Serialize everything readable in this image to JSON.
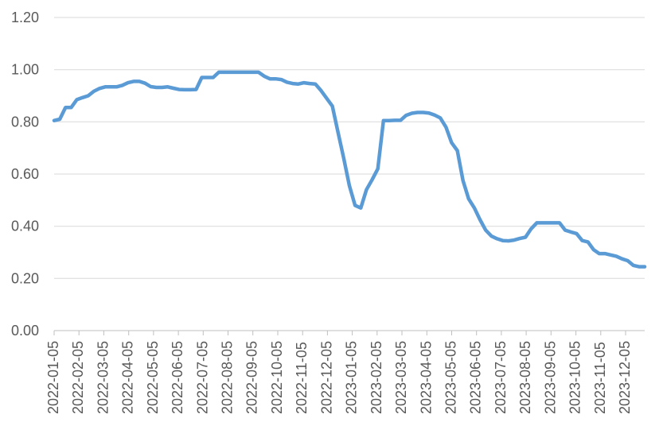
{
  "chart_data": {
    "type": "line",
    "title": "",
    "xlabel": "",
    "ylabel": "",
    "legend": "none",
    "grid": true,
    "ylim": [
      0.0,
      1.2
    ],
    "y_ticks": [
      "0.00",
      "0.20",
      "0.40",
      "0.60",
      "0.80",
      "1.00",
      "1.20"
    ],
    "x_tick_labels": [
      "2022-01-05",
      "2022-02-05",
      "2022-03-05",
      "2022-04-05",
      "2022-05-05",
      "2022-06-05",
      "2022-07-05",
      "2022-08-05",
      "2022-09-05",
      "2022-10-05",
      "2022-11-05",
      "2022-12-05",
      "2023-01-05",
      "2023-02-05",
      "2023-03-05",
      "2023-04-05",
      "2023-05-05",
      "2023-06-05",
      "2023-07-05",
      "2023-08-05",
      "2023-09-05",
      "2023-10-05",
      "2023-11-05",
      "2023-12-05"
    ],
    "x": [
      "2022-01-05",
      "2022-01-12",
      "2022-01-19",
      "2022-01-26",
      "2022-02-02",
      "2022-02-09",
      "2022-02-16",
      "2022-02-23",
      "2022-03-02",
      "2022-03-09",
      "2022-03-16",
      "2022-03-23",
      "2022-03-30",
      "2022-04-06",
      "2022-04-13",
      "2022-04-20",
      "2022-04-27",
      "2022-05-04",
      "2022-05-11",
      "2022-05-18",
      "2022-05-25",
      "2022-06-01",
      "2022-06-08",
      "2022-06-15",
      "2022-06-22",
      "2022-06-29",
      "2022-07-06",
      "2022-07-13",
      "2022-07-20",
      "2022-07-27",
      "2022-08-03",
      "2022-08-10",
      "2022-08-17",
      "2022-08-24",
      "2022-08-31",
      "2022-09-07",
      "2022-09-14",
      "2022-09-21",
      "2022-09-28",
      "2022-10-05",
      "2022-10-12",
      "2022-10-19",
      "2022-10-26",
      "2022-11-02",
      "2022-11-09",
      "2022-11-16",
      "2022-11-23",
      "2022-11-30",
      "2022-12-07",
      "2022-12-14",
      "2022-12-21",
      "2022-12-28",
      "2023-01-04",
      "2023-01-11",
      "2023-01-18",
      "2023-01-25",
      "2023-02-01",
      "2023-02-08",
      "2023-02-15",
      "2023-02-22",
      "2023-03-01",
      "2023-03-08",
      "2023-03-15",
      "2023-03-22",
      "2023-03-29",
      "2023-04-05",
      "2023-04-12",
      "2023-04-19",
      "2023-04-26",
      "2023-05-03",
      "2023-05-10",
      "2023-05-17",
      "2023-05-24",
      "2023-05-31",
      "2023-06-07",
      "2023-06-14",
      "2023-06-21",
      "2023-06-28",
      "2023-07-05",
      "2023-07-12",
      "2023-07-19",
      "2023-07-26",
      "2023-08-02",
      "2023-08-09",
      "2023-08-16",
      "2023-08-23",
      "2023-08-30",
      "2023-09-06",
      "2023-09-13",
      "2023-09-20",
      "2023-09-27",
      "2023-10-04",
      "2023-10-11",
      "2023-10-18",
      "2023-10-25",
      "2023-11-01",
      "2023-11-08",
      "2023-11-15",
      "2023-11-22",
      "2023-11-29",
      "2023-12-06",
      "2023-12-13",
      "2023-12-20",
      "2023-12-27",
      "2024-01-03"
    ],
    "values": [
      0.805,
      0.81,
      0.855,
      0.855,
      0.885,
      0.893,
      0.9,
      0.917,
      0.928,
      0.934,
      0.934,
      0.934,
      0.94,
      0.95,
      0.955,
      0.955,
      0.948,
      0.935,
      0.932,
      0.932,
      0.934,
      0.929,
      0.924,
      0.923,
      0.923,
      0.924,
      0.97,
      0.97,
      0.97,
      0.99,
      0.99,
      0.99,
      0.99,
      0.99,
      0.99,
      0.99,
      0.99,
      0.975,
      0.965,
      0.965,
      0.962,
      0.952,
      0.947,
      0.945,
      0.95,
      0.947,
      0.945,
      0.92,
      0.89,
      0.86,
      0.76,
      0.66,
      0.555,
      0.48,
      0.47,
      0.54,
      0.578,
      0.62,
      0.805,
      0.805,
      0.806,
      0.806,
      0.825,
      0.833,
      0.836,
      0.836,
      0.834,
      0.826,
      0.815,
      0.78,
      0.72,
      0.69,
      0.575,
      0.505,
      0.47,
      0.425,
      0.385,
      0.362,
      0.352,
      0.345,
      0.344,
      0.347,
      0.353,
      0.358,
      0.39,
      0.413,
      0.413,
      0.413,
      0.413,
      0.413,
      0.385,
      0.378,
      0.372,
      0.345,
      0.34,
      0.31,
      0.295,
      0.295,
      0.29,
      0.285,
      0.275,
      0.268,
      0.25,
      0.245,
      0.245
    ],
    "colors": {
      "line": "#5B9BD5",
      "gridline": "#D9D9D9",
      "axis": "#BFBFBF",
      "text": "#595959"
    }
  }
}
